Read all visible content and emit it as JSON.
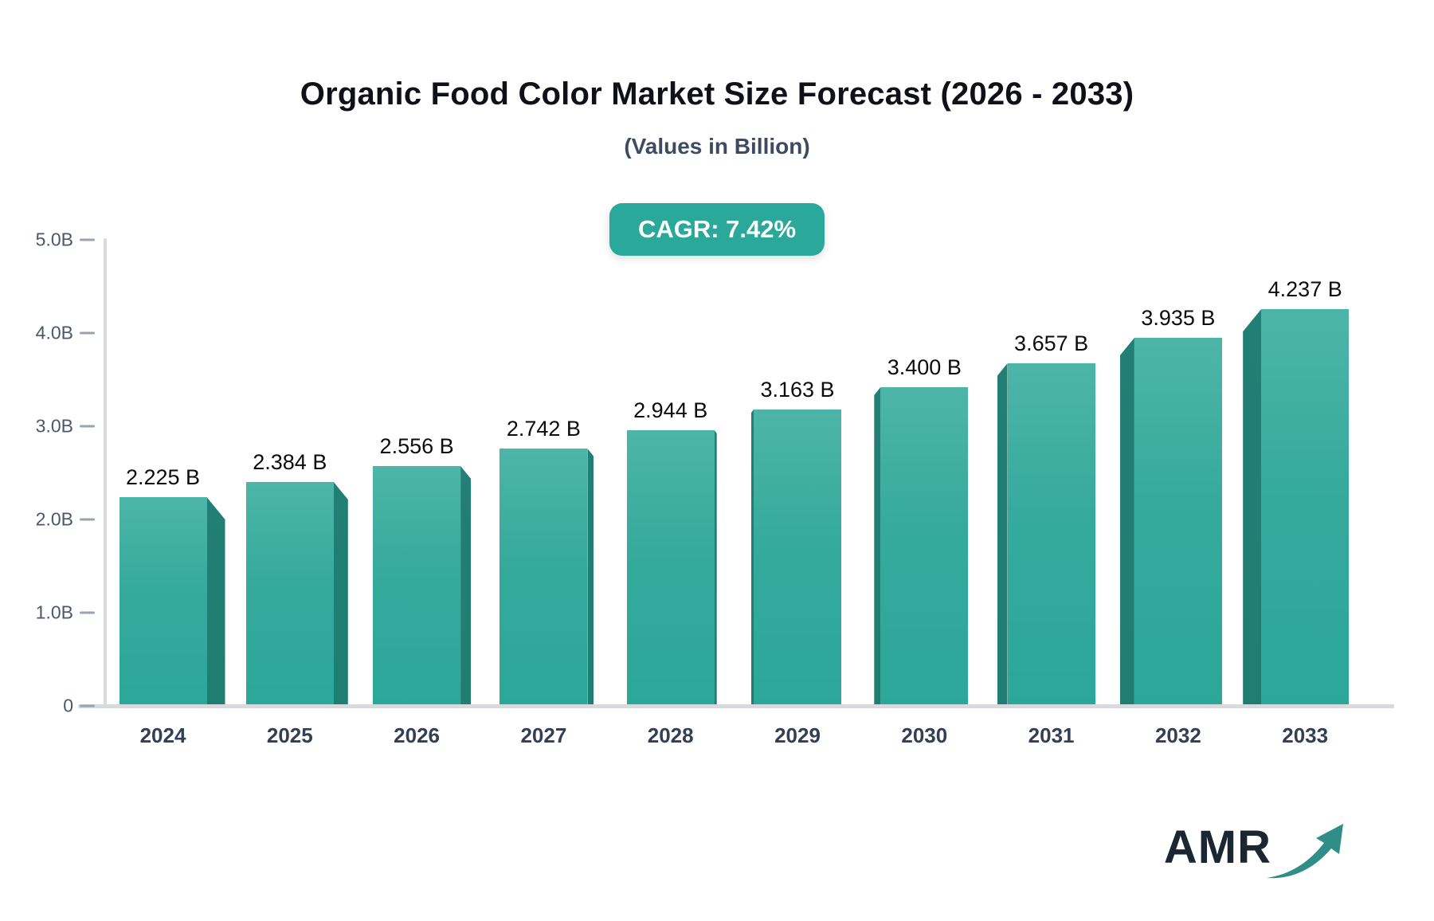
{
  "header": {
    "title": "Organic Food Color Market Size Forecast (2026 - 2033)",
    "subtitle": "(Values in Billion)",
    "cagr_badge": "CAGR: 7.42%"
  },
  "chart_data": {
    "type": "bar",
    "title": "Organic Food Color Market Size Forecast (2026 - 2033)",
    "subtitle": "(Values in Billion)",
    "categories": [
      "2024",
      "2025",
      "2026",
      "2027",
      "2028",
      "2029",
      "2030",
      "2031",
      "2032",
      "2033"
    ],
    "values": [
      2.225,
      2.384,
      2.556,
      2.742,
      2.944,
      3.163,
      3.4,
      3.657,
      3.935,
      4.237
    ],
    "value_labels": [
      "2.225 B",
      "2.384 B",
      "2.556 B",
      "2.742 B",
      "2.944 B",
      "3.163 B",
      "3.400 B",
      "3.657 B",
      "3.935 B",
      "4.237 B"
    ],
    "xlabel": "",
    "ylabel": "",
    "ylim": [
      0,
      5
    ],
    "y_ticks": [
      {
        "value": 5,
        "label": "5.0B"
      },
      {
        "value": 4,
        "label": "4.0B"
      },
      {
        "value": 3,
        "label": "3.0B"
      },
      {
        "value": 2,
        "label": "2.0B"
      },
      {
        "value": 1,
        "label": "1.0B"
      },
      {
        "value": 0,
        "label": "0"
      }
    ],
    "grid": false,
    "legend": "none",
    "cagr": "7.42%",
    "style": "3d-perspective-bars"
  },
  "colors": {
    "bar_face_top": "#4db5a8",
    "bar_face_bottom": "#2ba79a",
    "bar_side": "#1f7d72",
    "badge_bg": "#2aa89a",
    "badge_text": "#ffffff",
    "axis_line": "#d8dade",
    "tick_dash": "#9aa3b2",
    "tick_label": "#4b586b",
    "category_label": "#333f54",
    "value_label": "#0b0b10",
    "title": "#101018",
    "subtitle": "#3e4a5e",
    "logo_text": "#1b2630",
    "logo_arrow": "#2f8e88"
  },
  "footer": {
    "logo_text": "AMR"
  },
  "icons": {
    "logo_arrow": "growth-trend-arrow-icon"
  }
}
